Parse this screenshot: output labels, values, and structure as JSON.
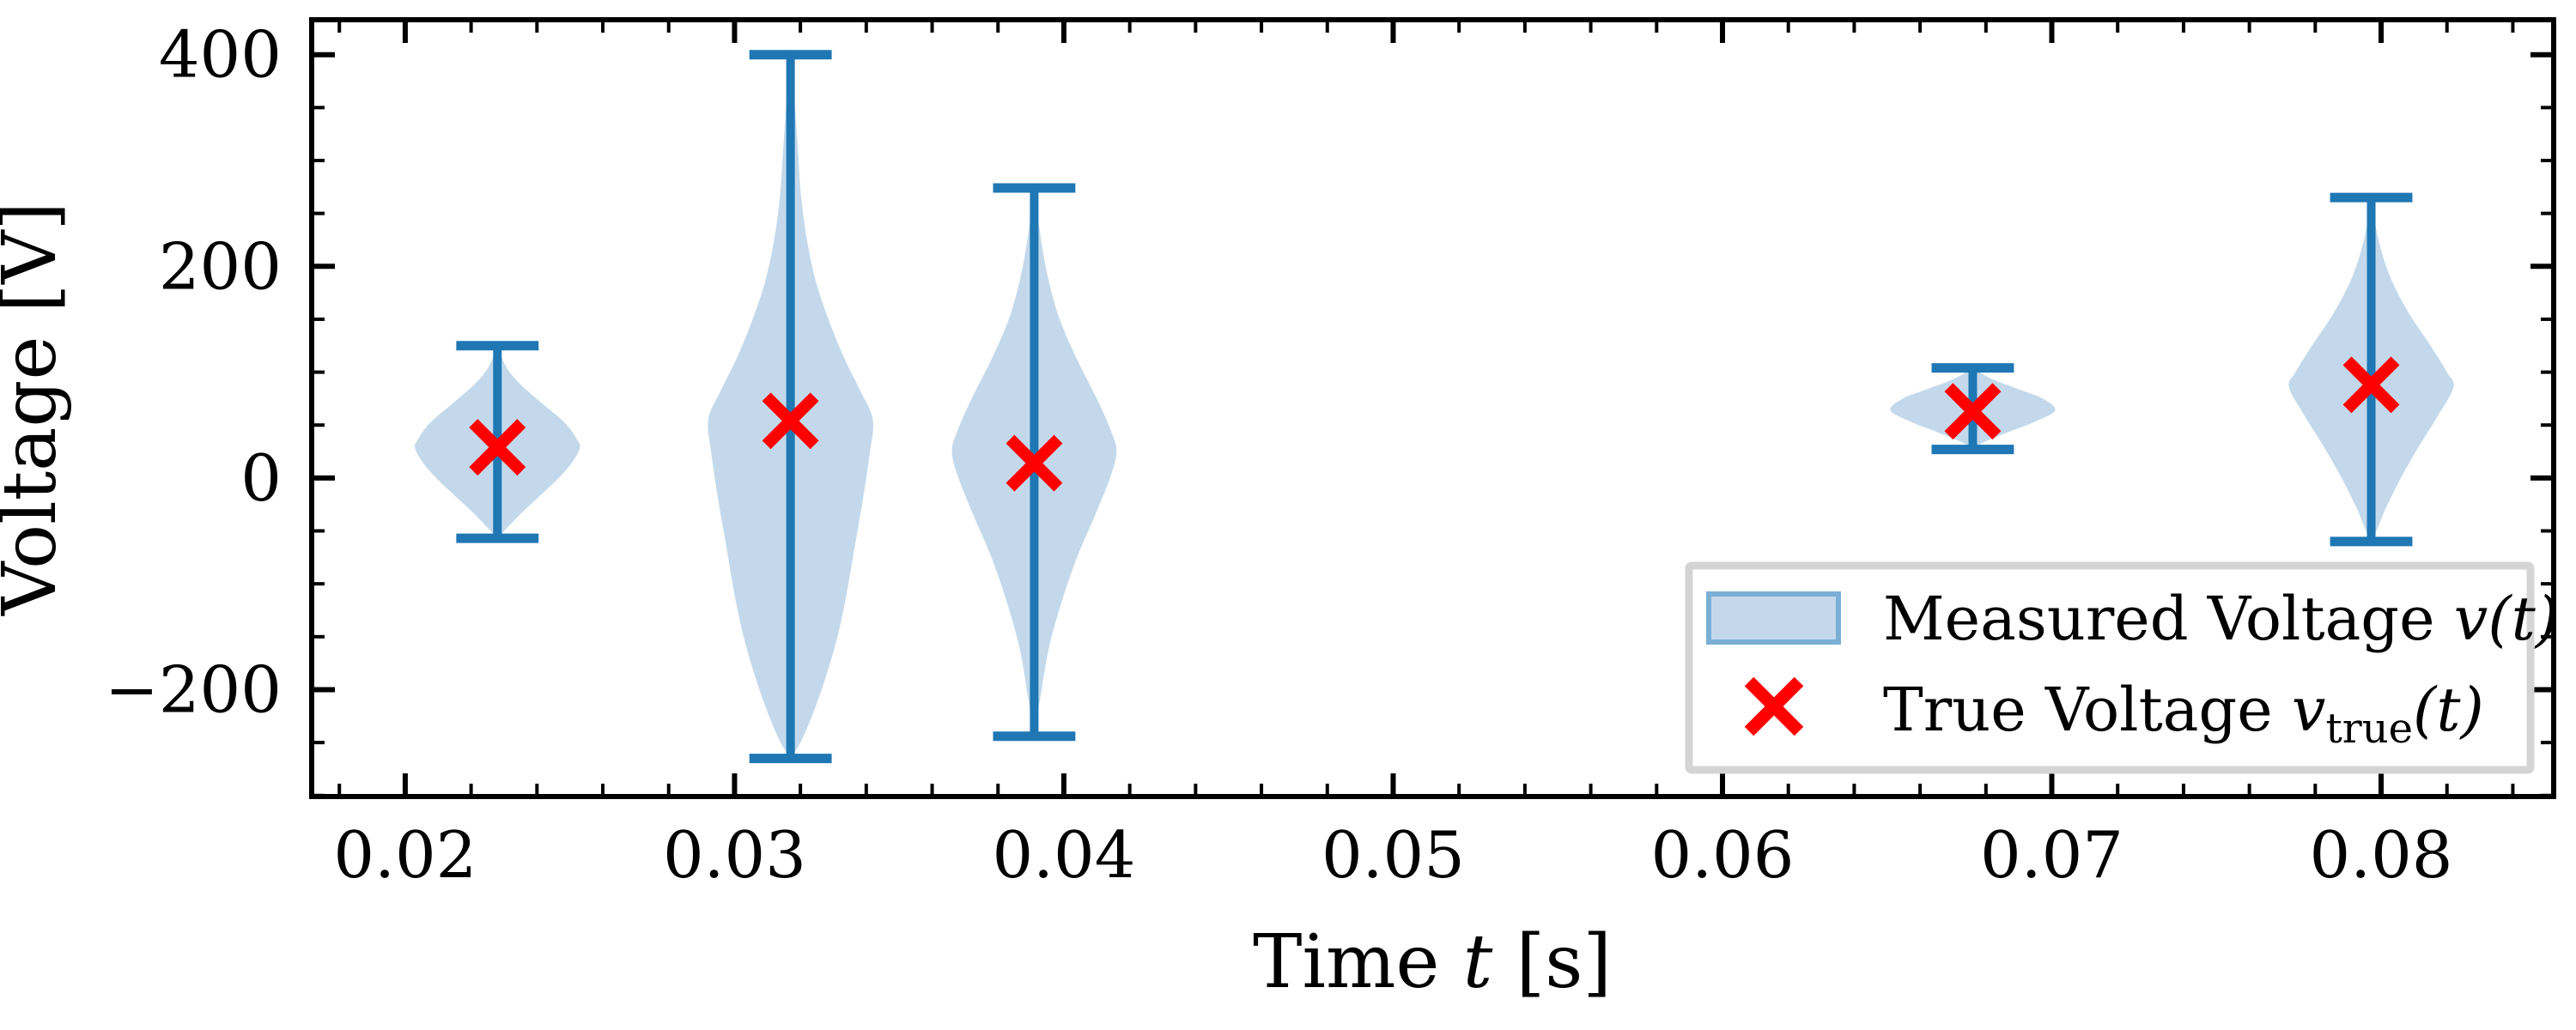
{
  "figure": {
    "background": "#ffffff"
  },
  "colors": {
    "violin_fill": "#c3d9eb",
    "violin_edge": "#7bafd6",
    "whisker_blue": "#1f77b4",
    "marker_red": "#ff0000",
    "axis_black": "#000000",
    "legend_border": "#d4d4d4",
    "legend_bg": "#ffffff"
  },
  "axes": {
    "ylabel": "Voltage [V]",
    "xlabel_pre": "Time ",
    "xlabel_math": "t",
    "xlabel_post": " [s]",
    "xlim": [
      0.01716,
      0.08524
    ],
    "ylim": [
      -301,
      433
    ],
    "x_major_ticks": [
      0.02,
      0.03,
      0.04,
      0.05,
      0.06,
      0.07,
      0.08
    ],
    "x_major_labels": [
      "0.02",
      "0.03",
      "0.04",
      "0.05",
      "0.06",
      "0.07",
      "0.08"
    ],
    "x_minor_step": 0.002,
    "y_major_ticks": [
      -200,
      0,
      200,
      400
    ],
    "y_major_labels": [
      "−200",
      "0",
      "200",
      "400"
    ],
    "y_minor_step": 50,
    "ticks_direction": "in",
    "grid": false
  },
  "legend": {
    "position": "lower right",
    "measured_label": "Measured Voltage ",
    "measured_math": "v(t)",
    "true_label": "True Voltage ",
    "true_math_v": "v",
    "true_math_sub": "true",
    "true_math_post": "(t)"
  },
  "chart_data": {
    "type": "violin",
    "title": "",
    "xlabel": "Time t [s]",
    "ylabel": "Voltage [V]",
    "xlim": [
      0.01716,
      0.08524
    ],
    "ylim": [
      -301,
      433
    ],
    "legend_entries": [
      "Measured Voltage v(t)",
      "True Voltage v_true(t)"
    ],
    "max_halfwidth_t": 0.0025,
    "whisker_cap_halfwidth_t": 0.00125,
    "violins": [
      {
        "t": 0.0228,
        "v_true": 29,
        "v_min": -57,
        "v_max": 125,
        "v_peak": 28,
        "profile": [
          [
            125,
            0
          ],
          [
            106,
            0.1
          ],
          [
            90,
            0.26
          ],
          [
            72,
            0.52
          ],
          [
            52,
            0.82
          ],
          [
            36,
            0.97
          ],
          [
            28,
            1
          ],
          [
            14,
            0.9
          ],
          [
            -2,
            0.72
          ],
          [
            -18,
            0.5
          ],
          [
            -34,
            0.28
          ],
          [
            -47,
            0.12
          ],
          [
            -57,
            0
          ]
        ]
      },
      {
        "t": 0.0317,
        "v_true": 54,
        "v_min": -265,
        "v_max": 400,
        "v_peak": 55,
        "profile": [
          [
            400,
            0
          ],
          [
            355,
            0.05
          ],
          [
            310,
            0.09
          ],
          [
            265,
            0.13
          ],
          [
            225,
            0.2
          ],
          [
            185,
            0.31
          ],
          [
            148,
            0.47
          ],
          [
            112,
            0.66
          ],
          [
            82,
            0.85
          ],
          [
            55,
            1
          ],
          [
            22,
            0.96
          ],
          [
            -20,
            0.88
          ],
          [
            -65,
            0.78
          ],
          [
            -110,
            0.68
          ],
          [
            -150,
            0.57
          ],
          [
            -190,
            0.42
          ],
          [
            -225,
            0.26
          ],
          [
            -250,
            0.12
          ],
          [
            -265,
            0
          ]
        ]
      },
      {
        "t": 0.0391,
        "v_true": 14,
        "v_min": -244,
        "v_max": 274,
        "v_peak": 25,
        "profile": [
          [
            274,
            0
          ],
          [
            232,
            0.07
          ],
          [
            192,
            0.16
          ],
          [
            152,
            0.3
          ],
          [
            112,
            0.52
          ],
          [
            75,
            0.76
          ],
          [
            45,
            0.93
          ],
          [
            25,
            1
          ],
          [
            0,
            0.92
          ],
          [
            -35,
            0.74
          ],
          [
            -75,
            0.52
          ],
          [
            -118,
            0.33
          ],
          [
            -160,
            0.18
          ],
          [
            -205,
            0.08
          ],
          [
            -244,
            0
          ]
        ]
      },
      {
        "t": 0.0676,
        "v_true": 63,
        "v_min": 27,
        "v_max": 104,
        "v_peak": 64,
        "profile": [
          [
            104,
            0
          ],
          [
            94,
            0.22
          ],
          [
            84,
            0.55
          ],
          [
            75,
            0.85
          ],
          [
            64,
            1
          ],
          [
            53,
            0.75
          ],
          [
            43,
            0.42
          ],
          [
            34,
            0.14
          ],
          [
            27,
            0
          ]
        ]
      },
      {
        "t": 0.0797,
        "v_true": 88,
        "v_min": -60,
        "v_max": 265,
        "v_peak": 86,
        "profile": [
          [
            265,
            0
          ],
          [
            228,
            0.08
          ],
          [
            192,
            0.22
          ],
          [
            158,
            0.44
          ],
          [
            125,
            0.72
          ],
          [
            100,
            0.92
          ],
          [
            86,
            1
          ],
          [
            60,
            0.82
          ],
          [
            30,
            0.58
          ],
          [
            0,
            0.36
          ],
          [
            -28,
            0.18
          ],
          [
            -47,
            0.08
          ],
          [
            -60,
            0
          ]
        ]
      }
    ]
  }
}
